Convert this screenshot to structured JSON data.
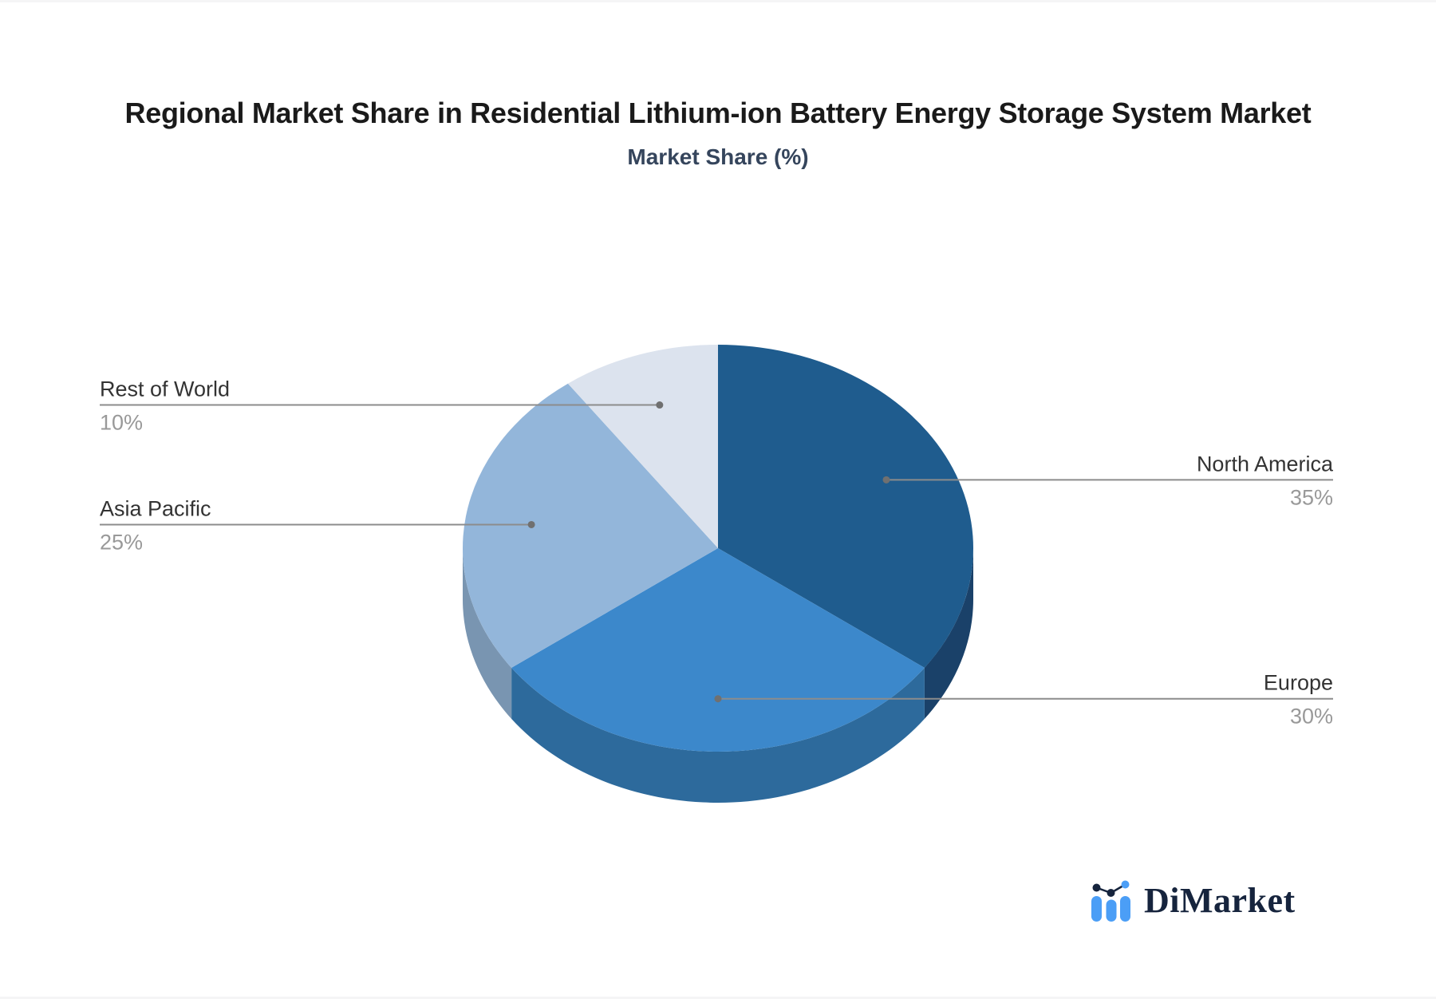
{
  "page": {
    "background": "#ffffff"
  },
  "header": {
    "title": "Regional Market Share in Residential Lithium-ion Battery Energy Storage System Market",
    "subtitle": "Market Share (%)"
  },
  "chart_data": {
    "type": "pie",
    "title": "Regional Market Share in Residential Lithium-ion Battery Energy Storage System Market",
    "subtitle": "Market Share (%)",
    "unit": "%",
    "style": "3d-pie",
    "start_angle_deg": 0,
    "direction": "clockwise",
    "legend_position": "none",
    "categories": [
      "North America",
      "Europe",
      "Asia Pacific",
      "Rest of World"
    ],
    "values": [
      35,
      30,
      25,
      10
    ],
    "slices": [
      {
        "label": "North America",
        "value": 35,
        "pct_label": "35%",
        "color": "#1f5c8e",
        "side_color": "#1a4169"
      },
      {
        "label": "Europe",
        "value": 30,
        "pct_label": "30%",
        "color": "#3c88cb",
        "side_color": "#2d6a9c"
      },
      {
        "label": "Asia Pacific",
        "value": 25,
        "pct_label": "25%",
        "color": "#93b6da",
        "side_color": "#7995b1"
      },
      {
        "label": "Rest of World",
        "value": 10,
        "pct_label": "10%",
        "color": "#dce3ee",
        "side_color": "#b9c4d4"
      }
    ],
    "colors": {
      "label_text": "#333333",
      "pct_text": "#999999",
      "connector_line": "#8c8c8c",
      "connector_dot": "#707070"
    }
  },
  "logo": {
    "text": "DiMarket",
    "navy": "#16243d",
    "blue": "#4b9ef6"
  }
}
